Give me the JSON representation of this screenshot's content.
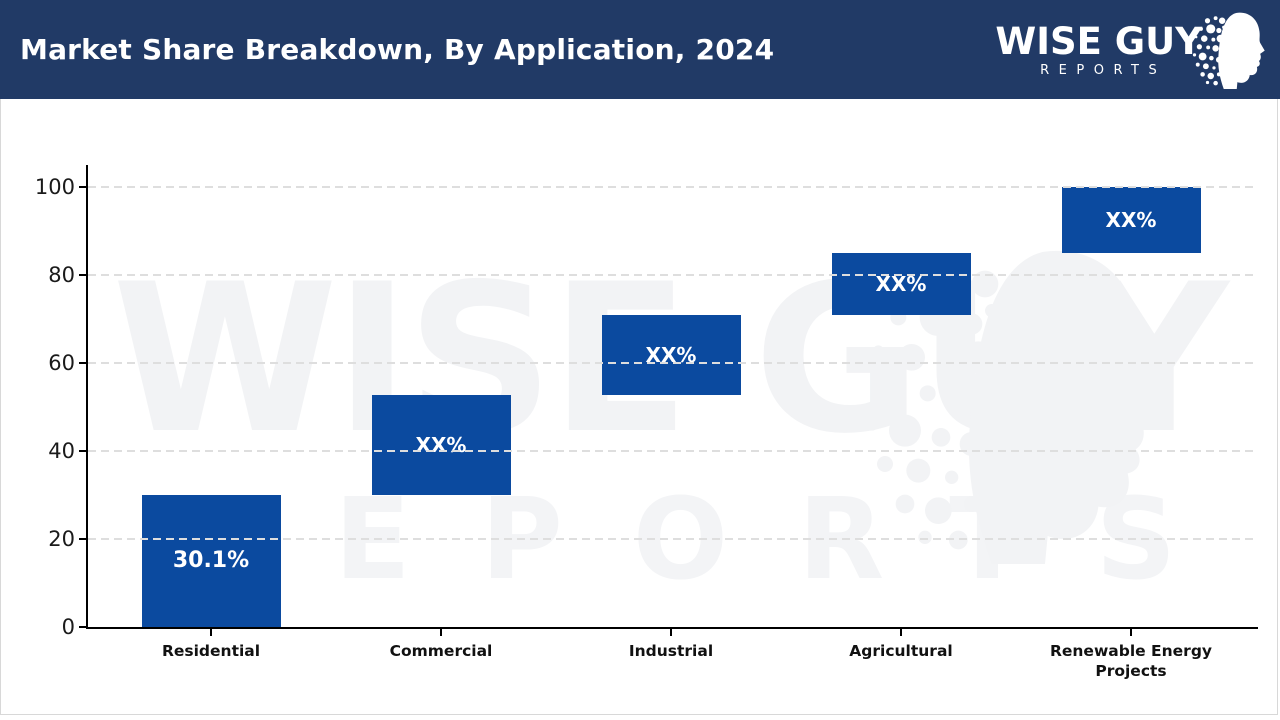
{
  "header": {
    "title": "Market Share Breakdown, By Application, 2024",
    "bg_color": "#213a66",
    "logo": {
      "line1": "WISE GUY",
      "line2": "REPORTS"
    }
  },
  "watermark": {
    "line1": "WISE GUY",
    "line2": "REPORTS"
  },
  "chart_data": {
    "type": "bar",
    "subtype": "waterfall-floating-bars",
    "title": "Market Share Breakdown, By Application, 2024",
    "categories": [
      "Residential",
      "Commercial",
      "Industrial",
      "Agricultural",
      "Renewable Energy Projects"
    ],
    "segments": [
      {
        "label": "30.1%",
        "start": 0,
        "end": 30.1
      },
      {
        "label": "XX%",
        "start": 30.1,
        "end": 52.7
      },
      {
        "label": "XX%",
        "start": 52.7,
        "end": 70.9
      },
      {
        "label": "XX%",
        "start": 70.9,
        "end": 85.0
      },
      {
        "label": "XX%",
        "start": 85.0,
        "end": 100.0
      }
    ],
    "xlabel": "",
    "ylabel": "",
    "ylim": [
      0,
      100
    ],
    "yticks": [
      0,
      20,
      40,
      60,
      80,
      100
    ],
    "grid": "horizontal-dashed",
    "legend": "none",
    "bar_color": "#0b4a9f",
    "bar_label_color": "#ffffff"
  }
}
